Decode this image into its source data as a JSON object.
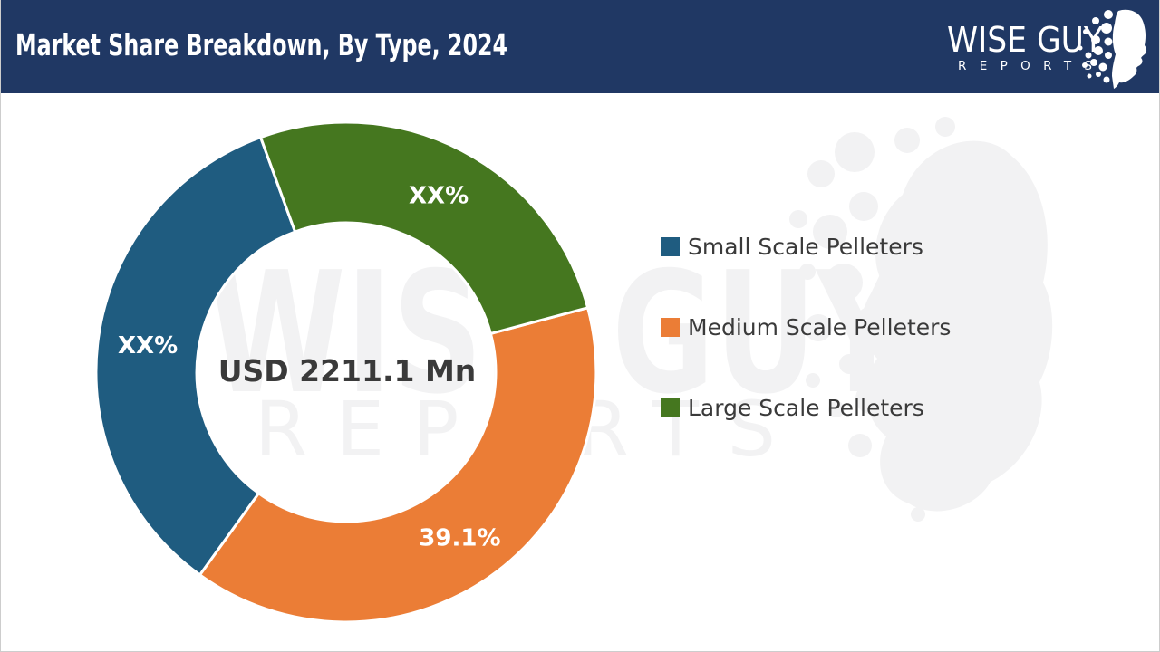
{
  "header": {
    "title": "Market Share Breakdown, By Type, 2024",
    "bg_color": "#203864",
    "logo": {
      "line1": "WISE GUY",
      "line2": "REPORTS"
    }
  },
  "watermark": {
    "line1": "WISE GUY",
    "line2": "REPORTS"
  },
  "chart_data": {
    "type": "pie",
    "donut": true,
    "title": "Market Share Breakdown, By Type, 2024",
    "center_label": "USD 2211.1 Mn",
    "legend_position": "right",
    "start_angle_deg": 110,
    "direction": "counterclockwise",
    "segments": [
      {
        "id": "small-scale",
        "label": "Small Scale Pelleters",
        "display_value": "XX%",
        "share_pct_est": 34.5,
        "color": "#1F5C80"
      },
      {
        "id": "medium-scale",
        "label": "Medium Scale Pelleters",
        "display_value": "39.1%",
        "share_pct_est": 39.1,
        "color": "#EB7D36"
      },
      {
        "id": "large-scale",
        "label": "Large Scale Pelleters",
        "display_value": "XX%",
        "share_pct_est": 26.4,
        "color": "#45771F"
      }
    ]
  },
  "colors": {
    "header_navy": "#203864",
    "text_dark": "#3A3A3A",
    "watermark_gray": "#F2F2F3"
  }
}
